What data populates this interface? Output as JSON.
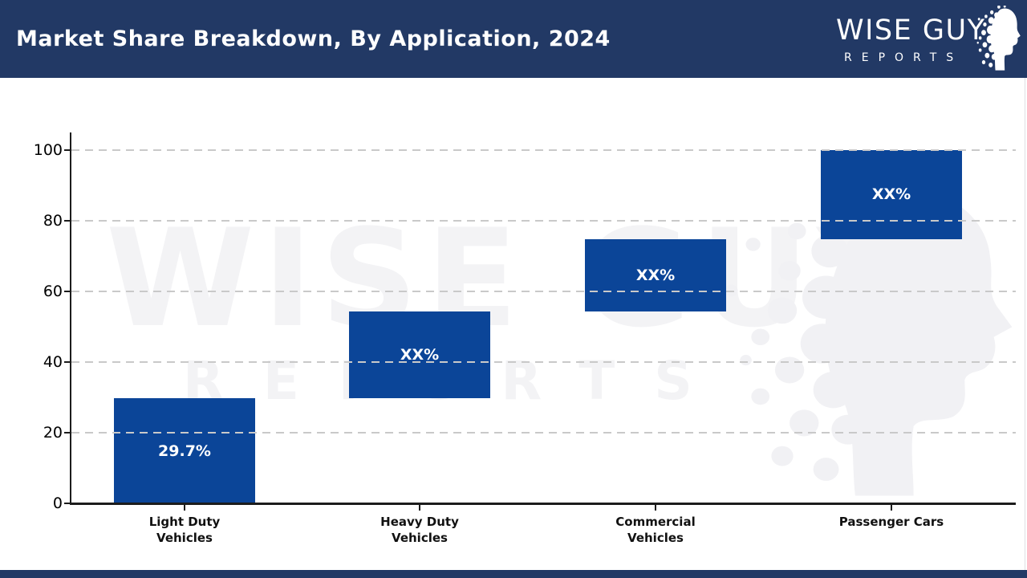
{
  "header": {
    "title": "Market Share Breakdown, By Application, 2024",
    "logo": {
      "line1": "WISE GUY",
      "line2": "REPORTS"
    }
  },
  "watermark": {
    "line1": "WISE GUY",
    "line2": "REPORTS"
  },
  "chart_data": {
    "type": "bar",
    "variant": "waterfall",
    "title": "Market Share Breakdown, By Application, 2024",
    "categories": [
      {
        "name": "Light Duty Vehicles",
        "lines": [
          "Light Duty",
          "Vehicles"
        ]
      },
      {
        "name": "Heavy Duty Vehicles",
        "lines": [
          "Heavy Duty",
          "Vehicles"
        ]
      },
      {
        "name": "Commercial Vehicles",
        "lines": [
          "Commercial",
          "Vehicles"
        ]
      },
      {
        "name": "Passenger Cars",
        "lines": [
          "Passenger Cars"
        ]
      }
    ],
    "segments": [
      {
        "category": "Light Duty Vehicles",
        "start": 0,
        "end": 29.7,
        "label": "29.7%"
      },
      {
        "category": "Heavy Duty Vehicles",
        "start": 29.7,
        "end": 54.3,
        "label": "XX%"
      },
      {
        "category": "Commercial Vehicles",
        "start": 54.3,
        "end": 74.8,
        "label": "XX%"
      },
      {
        "category": "Passenger Cars",
        "start": 74.8,
        "end": 100,
        "label": "XX%"
      }
    ],
    "y_ticks": [
      0,
      20,
      40,
      60,
      80,
      100
    ],
    "ylim": [
      0,
      100
    ],
    "grid": "horizontal-dashed",
    "legend": "none",
    "colors": {
      "bar": "#0b4598",
      "bar_label": "#ffffff",
      "header_bg": "#223965",
      "footer_bg": "#223965",
      "gridline": "#c9c9c9",
      "axis": "#1c1c1c",
      "watermark": "#f3f3f5"
    }
  }
}
